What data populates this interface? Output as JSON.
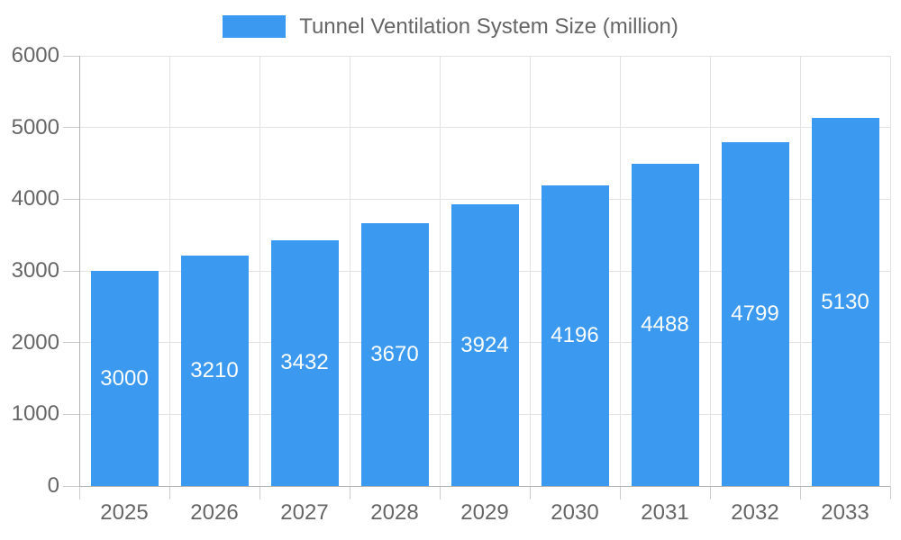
{
  "chart_data": {
    "type": "bar",
    "title": "Tunnel Ventilation System Size (million)",
    "legend": [
      "Tunnel Ventilation System Size (million)"
    ],
    "legend_position": "top",
    "categories": [
      "2025",
      "2026",
      "2027",
      "2028",
      "2029",
      "2030",
      "2031",
      "2032",
      "2033"
    ],
    "values": [
      3000,
      3210,
      3432,
      3670,
      3924,
      4196,
      4488,
      4799,
      5130
    ],
    "bar_value_labels": [
      "3000",
      "3210",
      "3432",
      "3670",
      "3924",
      "4196",
      "4488",
      "4799",
      "5130"
    ],
    "xlabel": "",
    "ylabel": "",
    "ylim": [
      0,
      6000
    ],
    "yticks": [
      0,
      1000,
      2000,
      3000,
      4000,
      5000,
      6000
    ],
    "grid": true,
    "colors": {
      "bar": "#3B9AEF",
      "bar_label": "#FFFFFF",
      "axis_text": "#666666",
      "legend_text": "#666666",
      "grid_line": "#E3E3E3",
      "axis_line": "#B3B3B3",
      "tick_line": "#CCCCCC",
      "background": "#FFFFFF"
    }
  }
}
